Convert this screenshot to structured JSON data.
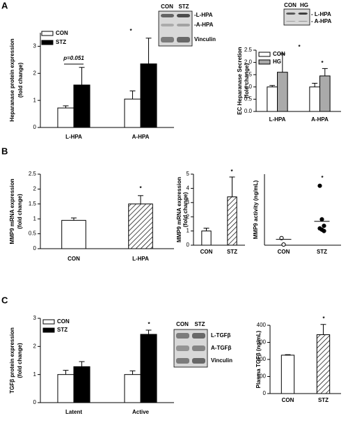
{
  "panels": [
    "A",
    "B",
    "C"
  ],
  "blots": [
    {
      "lanes": [
        "CON",
        "STZ"
      ],
      "bands": [
        "-L-HPA",
        "-A-HPA",
        "Vinculin"
      ]
    },
    {
      "lanes": [
        "CON",
        "HG"
      ],
      "bands": [
        "- L-HPA",
        "- A-HPA"
      ]
    },
    {
      "lanes": [
        "CON",
        "STZ"
      ],
      "bands": [
        "L-TGFβ",
        "A-TGFβ",
        "Vinculin"
      ]
    }
  ],
  "chart_data": [
    {
      "type": "bar",
      "ylabel": [
        "Heparanase protein expression",
        "(fold change)"
      ],
      "categories": [
        "L-HPA",
        "A-HPA"
      ],
      "series": [
        {
          "name": "CON",
          "color": "#ffffff",
          "values": [
            0.72,
            1.05
          ],
          "errors": [
            0.08,
            0.3
          ]
        },
        {
          "name": "STZ",
          "color": "#000000",
          "values": [
            1.57,
            2.35
          ],
          "errors": [
            0.65,
            0.95
          ]
        }
      ],
      "ylim": [
        0,
        3.5
      ],
      "yticks": [
        0,
        1,
        2,
        3
      ],
      "annotations": [
        "p=0.051",
        "*"
      ]
    },
    {
      "type": "bar",
      "ylabel": [
        "EC Heparanase Secretion",
        "(fold change)"
      ],
      "categories": [
        "L-HPA",
        "A-HPA"
      ],
      "series": [
        {
          "name": "CON",
          "color": "#ffffff",
          "values": [
            1.0,
            1.0
          ],
          "errors": [
            0.06,
            0.15
          ]
        },
        {
          "name": "HG",
          "color": "#aaaaaa",
          "values": [
            1.6,
            1.45
          ],
          "errors": [
            0.75,
            0.3
          ]
        }
      ],
      "ylim": [
        0,
        2.5
      ],
      "yticks": [
        {
          "value": 0,
          "label": "0.0"
        },
        0.5,
        {
          "value": 1,
          "label": "1.0"
        },
        1.5,
        {
          "value": 2,
          "label": "2.0"
        },
        2.5
      ],
      "annotations": [
        "*",
        "*"
      ]
    },
    {
      "type": "bar",
      "ylabel": [
        "MMP9 mRNA expression",
        "(fold change)"
      ],
      "categories": [
        "CON",
        "L-HPA"
      ],
      "values": [
        0.95,
        1.5
      ],
      "errors": [
        0.08,
        0.28
      ],
      "fills": [
        "#ffffff",
        "hatched"
      ],
      "ylim": [
        0,
        2.5
      ],
      "yticks": [
        0,
        0.5,
        1,
        1.5,
        2,
        2.5
      ],
      "annotations": [
        "*"
      ]
    },
    {
      "type": "bar",
      "ylabel": [
        "MMP9 mRNA expression",
        "(fold change)"
      ],
      "categories": [
        "CON",
        "STZ"
      ],
      "values": [
        1.0,
        3.4
      ],
      "errors": [
        0.2,
        1.4
      ],
      "fills": [
        "#ffffff",
        "hatched"
      ],
      "ylim": [
        0,
        5
      ],
      "yticks": [
        0,
        1,
        2,
        3,
        4,
        5
      ],
      "annotations": [
        "*"
      ]
    },
    {
      "type": "scatter",
      "ylabel": [
        "MMP9 activity (ng/mL)"
      ],
      "categories": [
        "CON",
        "STZ"
      ],
      "points": [
        [
          0.55,
          0.05
        ],
        [
          4.6,
          2.0,
          1.5,
          1.3,
          1.2,
          1.1
        ]
      ],
      "means": [
        0.45,
        1.85
      ],
      "ylim": [
        0,
        5.5
      ],
      "annotations": [
        "*"
      ]
    },
    {
      "type": "bar",
      "ylabel": [
        "TGFβ protein expression",
        "(fold change)"
      ],
      "categories": [
        "Latent",
        "Active"
      ],
      "series": [
        {
          "name": "CON",
          "color": "#ffffff",
          "values": [
            1.0,
            1.0
          ],
          "errors": [
            0.15,
            0.13
          ]
        },
        {
          "name": "STZ",
          "color": "#000000",
          "values": [
            1.28,
            2.43
          ],
          "errors": [
            0.18,
            0.15
          ]
        }
      ],
      "ylim": [
        0,
        3
      ],
      "yticks": [
        0,
        1,
        2,
        3
      ],
      "annotations": [
        "*"
      ]
    },
    {
      "type": "bar",
      "ylabel": [
        "Plasma TGFβ (ng/mL)"
      ],
      "categories": [
        "CON",
        "STZ"
      ],
      "values": [
        225,
        345
      ],
      "errors": [
        3,
        60
      ],
      "fills": [
        "#ffffff",
        "hatched"
      ],
      "ylim": [
        0,
        400
      ],
      "yticks": [
        0,
        100,
        200,
        300,
        400
      ],
      "annotations": [
        "*"
      ]
    }
  ]
}
